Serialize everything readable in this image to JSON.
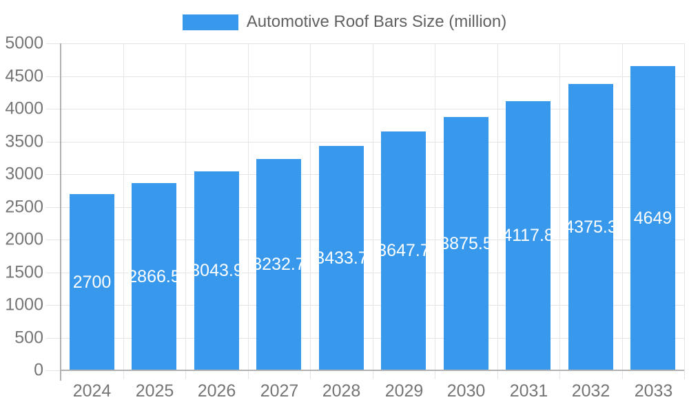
{
  "legend": {
    "label": "Automotive Roof Bars Size (million)"
  },
  "colors": {
    "bar": "#3898ec",
    "grid": "#e4e4e4",
    "axis_line": "#b1b1b1",
    "axis_text": "#757575",
    "legend_text": "#616161",
    "bar_label_text": "#ffffff",
    "background": "#ffffff"
  },
  "chart_data": {
    "type": "bar",
    "title": "Automotive Roof Bars Size (million)",
    "categories": [
      "2024",
      "2025",
      "2026",
      "2027",
      "2028",
      "2029",
      "2030",
      "2031",
      "2032",
      "2033"
    ],
    "values": [
      2700,
      2866.5,
      3043.9,
      3232.7,
      3433.7,
      3647.7,
      3875.5,
      4117.8,
      4375.3,
      4649
    ],
    "value_labels": [
      "2700",
      "2866.5",
      "3043.9",
      "3232.7",
      "3433.7",
      "3647.7",
      "3875.5",
      "4117.8",
      "4375.3",
      "4649"
    ],
    "xlabel": "",
    "ylabel": "",
    "ylim": [
      0,
      5000
    ],
    "ytick_step": 500,
    "yticks": [
      0,
      500,
      1000,
      1500,
      2000,
      2500,
      3000,
      3500,
      4000,
      4500,
      5000
    ],
    "ytick_labels": [
      "0",
      "500",
      "1000",
      "1500",
      "2000",
      "2500",
      "3000",
      "3500",
      "4000",
      "4500",
      "5000"
    ],
    "grid": true,
    "legend_position": "top",
    "value_label_position": "center-inside"
  }
}
